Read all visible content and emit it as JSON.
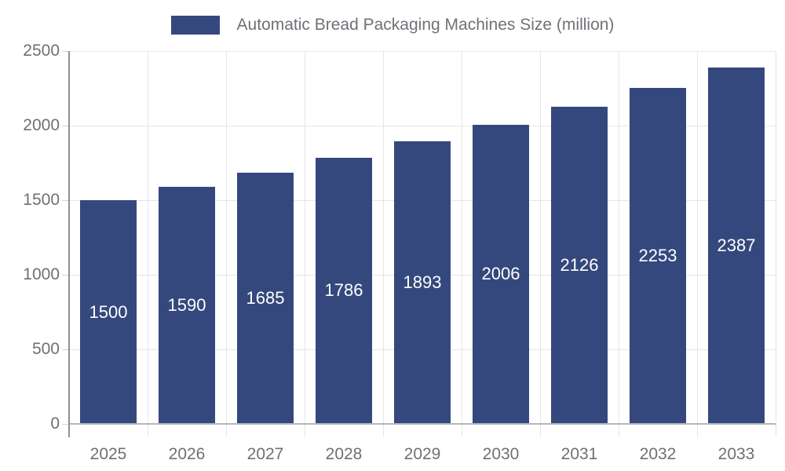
{
  "chart_data": {
    "type": "bar",
    "title": "Automatic Bread Packaging Machines Size (million)",
    "categories": [
      "2025",
      "2026",
      "2027",
      "2028",
      "2029",
      "2030",
      "2031",
      "2032",
      "2033"
    ],
    "series": [
      {
        "name": "Automatic Bread Packaging Machines Size (million)",
        "values": [
          1500,
          1590,
          1685,
          1786,
          1893,
          2006,
          2126,
          2253,
          2387
        ]
      }
    ],
    "xlabel": "",
    "ylabel": "",
    "ylim": [
      0,
      2500
    ],
    "yticks": [
      0,
      500,
      1000,
      1500,
      2000,
      2500
    ],
    "grid": true,
    "legend_position": "top",
    "value_labels": "inside-center"
  },
  "colors": {
    "bar": "#35487E",
    "value_label": "#FFFFFF",
    "axis_label": "#707070",
    "legend_text": "#6E7177",
    "gridline": "#E6E6E6",
    "y_axis_line": "#8F8F8F",
    "x_axis_line": "#B4B8BD",
    "y_tick": "#D4D4D4",
    "x_tick": "#E4E4E4",
    "background": "#FFFFFF"
  }
}
